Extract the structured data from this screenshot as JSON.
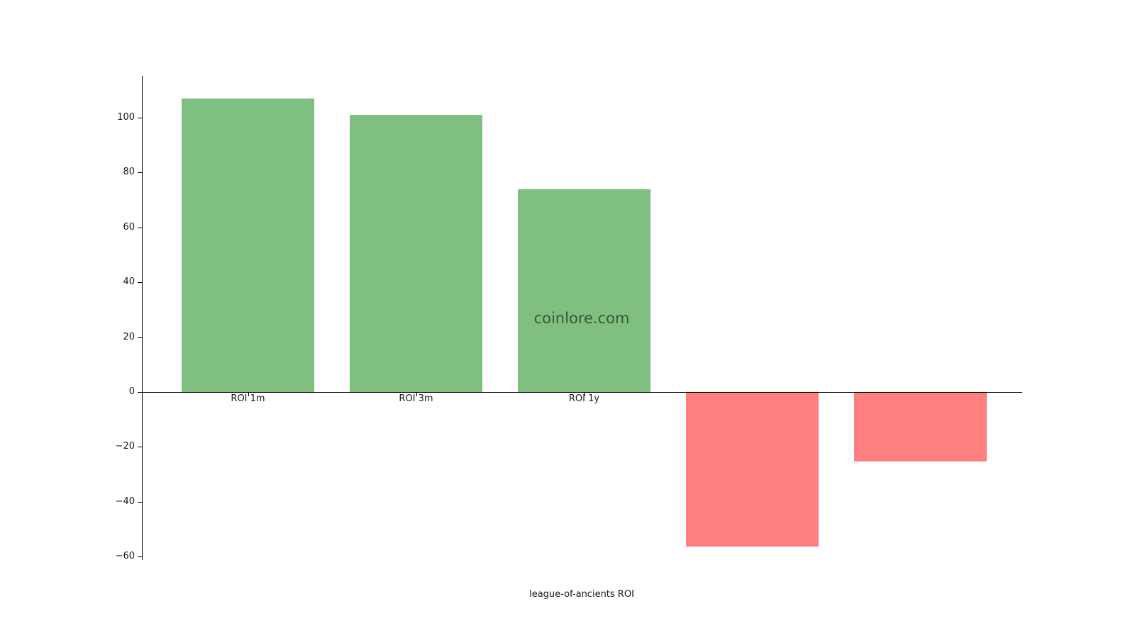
{
  "figure": {
    "background": "#ffffff"
  },
  "chart_data": {
    "type": "bar",
    "title": "",
    "xlabel": "league-of-ancients ROI",
    "ylabel": "",
    "watermark": "coinlore.com",
    "categories": [
      "ROI 1m",
      "ROI 3m",
      "ROI 1y",
      "",
      ""
    ],
    "values": [
      107,
      101,
      74,
      -56,
      -25
    ],
    "bar_colors": [
      "#7fbf7f",
      "#7fbf7f",
      "#7fbf7f",
      "#ff7f7f",
      "#ff7f7f"
    ],
    "positive_color": "#7fbf7f",
    "negative_color": "#ff7f7f",
    "axis_color": "#000000",
    "text_color": "#1a1a1a",
    "yticks": [
      100,
      80,
      60,
      40,
      20,
      0,
      -20,
      -40,
      -60
    ],
    "ytick_labels": [
      "100",
      "80",
      "60",
      "40",
      "20",
      "0",
      "−20",
      "−40",
      "−60"
    ],
    "ylim": [
      -61.5,
      115.8
    ],
    "grid": false,
    "legend": null
  }
}
